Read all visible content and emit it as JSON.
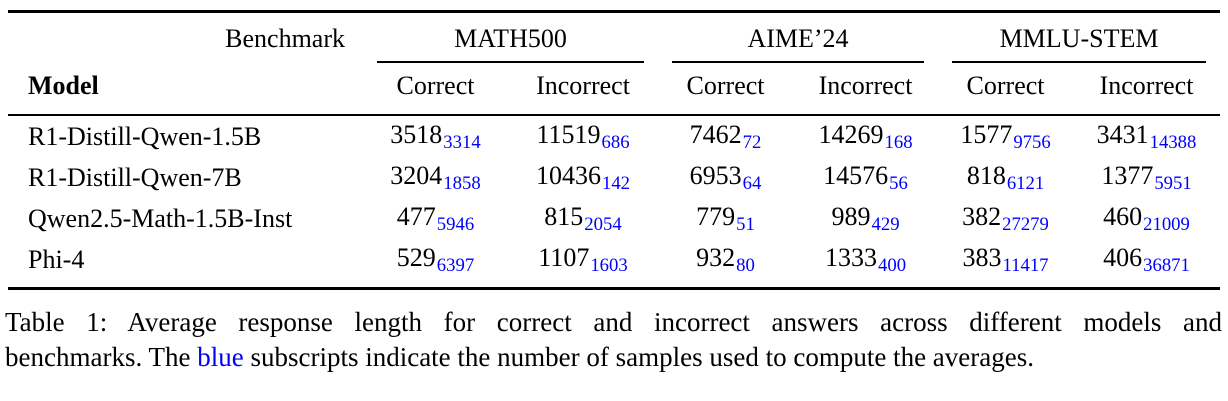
{
  "colors": {
    "text": "#000000",
    "subscript_blue": "#0000ff",
    "rule": "#000000",
    "background": "#ffffff"
  },
  "table": {
    "benchmark_header": "Benchmark",
    "model_header": "Model",
    "groups": [
      {
        "name": "MATH500",
        "columns": [
          "Correct",
          "Incorrect"
        ]
      },
      {
        "name": "AIME’24",
        "columns": [
          "Correct",
          "Incorrect"
        ]
      },
      {
        "name": "MMLU-STEM",
        "columns": [
          "Correct",
          "Incorrect"
        ]
      }
    ],
    "rows": [
      {
        "model": "R1-Distill-Qwen-1.5B",
        "cells": [
          {
            "value": "3518",
            "subscript": "3314"
          },
          {
            "value": "11519",
            "subscript": "686"
          },
          {
            "value": "7462",
            "subscript": "72"
          },
          {
            "value": "14269",
            "subscript": "168"
          },
          {
            "value": "1577",
            "subscript": "9756"
          },
          {
            "value": "3431",
            "subscript": "14388"
          }
        ]
      },
      {
        "model": "R1-Distill-Qwen-7B",
        "cells": [
          {
            "value": "3204",
            "subscript": "1858"
          },
          {
            "value": "10436",
            "subscript": "142"
          },
          {
            "value": "6953",
            "subscript": "64"
          },
          {
            "value": "14576",
            "subscript": "56"
          },
          {
            "value": "818",
            "subscript": "6121"
          },
          {
            "value": "1377",
            "subscript": "5951"
          }
        ]
      },
      {
        "model": "Qwen2.5-Math-1.5B-Inst",
        "cells": [
          {
            "value": "477",
            "subscript": "5946"
          },
          {
            "value": "815",
            "subscript": "2054"
          },
          {
            "value": "779",
            "subscript": "51"
          },
          {
            "value": "989",
            "subscript": "429"
          },
          {
            "value": "382",
            "subscript": "27279"
          },
          {
            "value": "460",
            "subscript": "21009"
          }
        ]
      },
      {
        "model": "Phi-4",
        "cells": [
          {
            "value": "529",
            "subscript": "6397"
          },
          {
            "value": "1107",
            "subscript": "1603"
          },
          {
            "value": "932",
            "subscript": "80"
          },
          {
            "value": "1333",
            "subscript": "400"
          },
          {
            "value": "383",
            "subscript": "11417"
          },
          {
            "value": "406",
            "subscript": "36871"
          }
        ]
      }
    ]
  },
  "caption": {
    "line1": "Table 1: Average response length for correct and incorrect answers across different models and",
    "line2_before": "benchmarks. The ",
    "line2_blue": "blue",
    "line2_after": " subscripts indicate the number of samples used to compute the averages."
  }
}
